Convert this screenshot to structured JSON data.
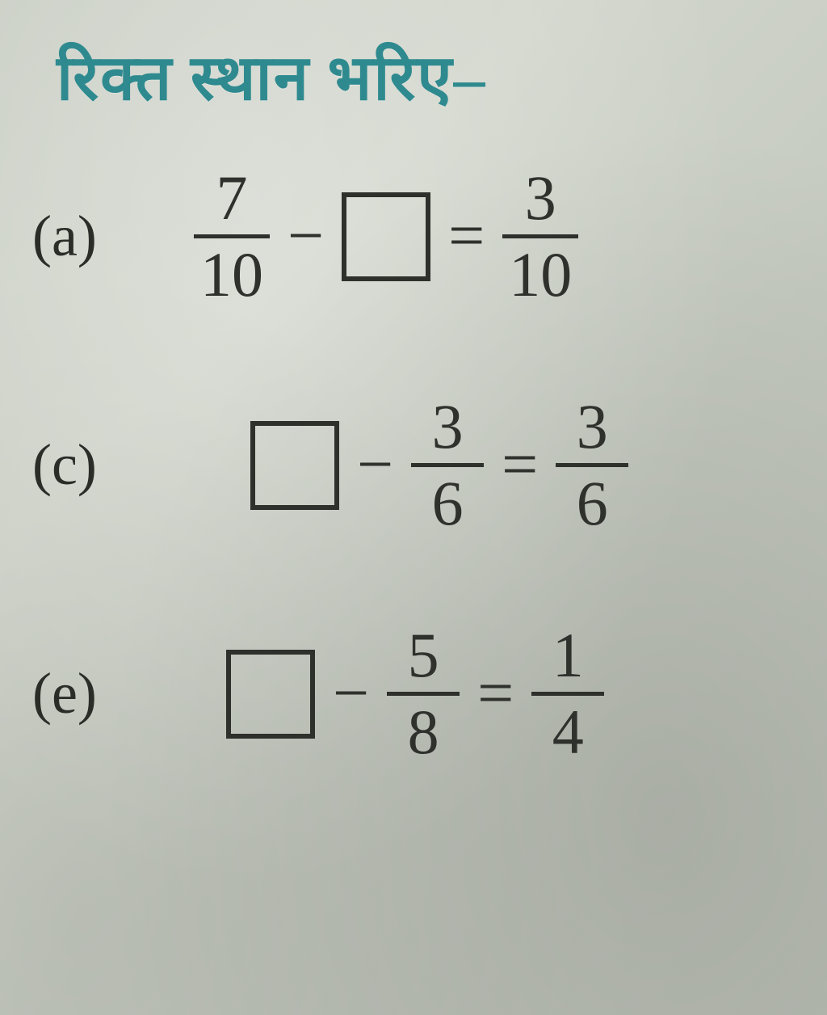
{
  "heading": {
    "text": "रिक्त स्थान भरिए–",
    "color": "#2f8a8f"
  },
  "problems": [
    {
      "label": "(a)",
      "left": {
        "type": "fraction",
        "num": "7",
        "den": "10"
      },
      "op": "−",
      "mid": {
        "type": "box"
      },
      "eq": "=",
      "right": {
        "type": "fraction",
        "num": "3",
        "den": "10"
      }
    },
    {
      "label": "(c)",
      "left": {
        "type": "box"
      },
      "op": "−",
      "mid": {
        "type": "fraction",
        "num": "3",
        "den": "6"
      },
      "eq": "=",
      "right": {
        "type": "fraction",
        "num": "3",
        "den": "6"
      }
    },
    {
      "label": "(e)",
      "left": {
        "type": "box"
      },
      "op": "−",
      "mid": {
        "type": "fraction",
        "num": "5",
        "den": "8"
      },
      "eq": "=",
      "right": {
        "type": "fraction",
        "num": "1",
        "den": "4"
      }
    }
  ],
  "colors": {
    "ink": "#2e302c",
    "background": "#cbd0c6"
  }
}
